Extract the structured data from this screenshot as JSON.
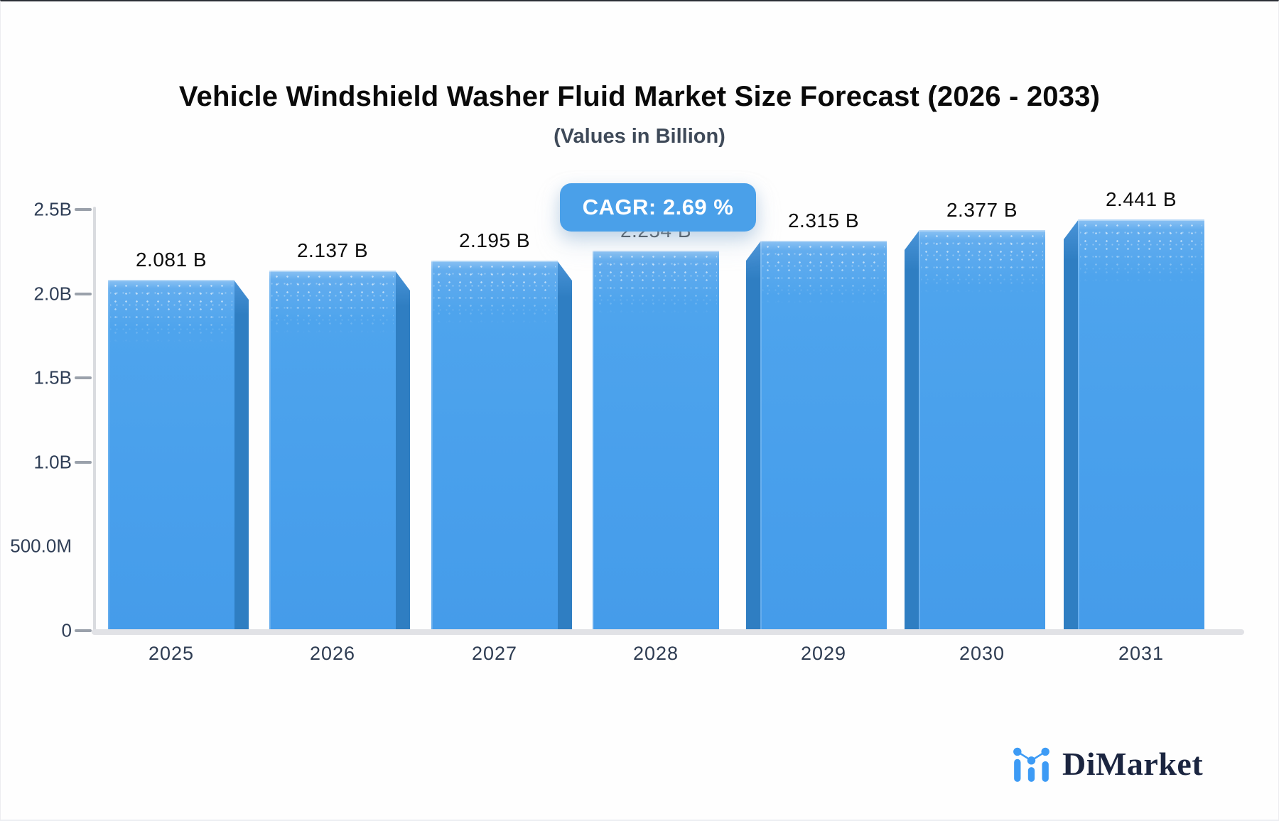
{
  "chart_data": {
    "type": "bar",
    "title": "Vehicle Windshield Washer Fluid Market Size Forecast (2026 - 2033)",
    "subtitle": "(Values in Billion)",
    "categories": [
      "2025",
      "2026",
      "2027",
      "2028",
      "2029",
      "2030",
      "2031"
    ],
    "values": [
      2.081,
      2.137,
      2.195,
      2.254,
      2.315,
      2.377,
      2.441
    ],
    "value_labels": [
      "2.081 B",
      "2.137 B",
      "2.195 B",
      "2.254 B",
      "2.315 B",
      "2.377 B",
      "2.441 B"
    ],
    "y_ticks": [
      {
        "label": "2.5B",
        "dash": true
      },
      {
        "label": "2.0B",
        "dash": true
      },
      {
        "label": "1.5B",
        "dash": true
      },
      {
        "label": "1.0B",
        "dash": true
      },
      {
        "label": "500.0M",
        "dash": false
      },
      {
        "label": "0",
        "dash": true
      }
    ],
    "ylim": [
      0,
      2.5
    ],
    "grid": false,
    "legend": "none",
    "annotation_badge": "CAGR: 2.69 %",
    "colors": {
      "bar_front": "#49a0ec",
      "bar_side": "#2f7ec2",
      "badge_bg": "#4aa0e9",
      "axis": "#d9dbdf",
      "tick_text": "#2f3e56",
      "value_text": "#0d0d0d"
    }
  },
  "branding": {
    "logo_text": "DiMarket",
    "logo_icon": "mini-bar-chart-with-dots"
  }
}
